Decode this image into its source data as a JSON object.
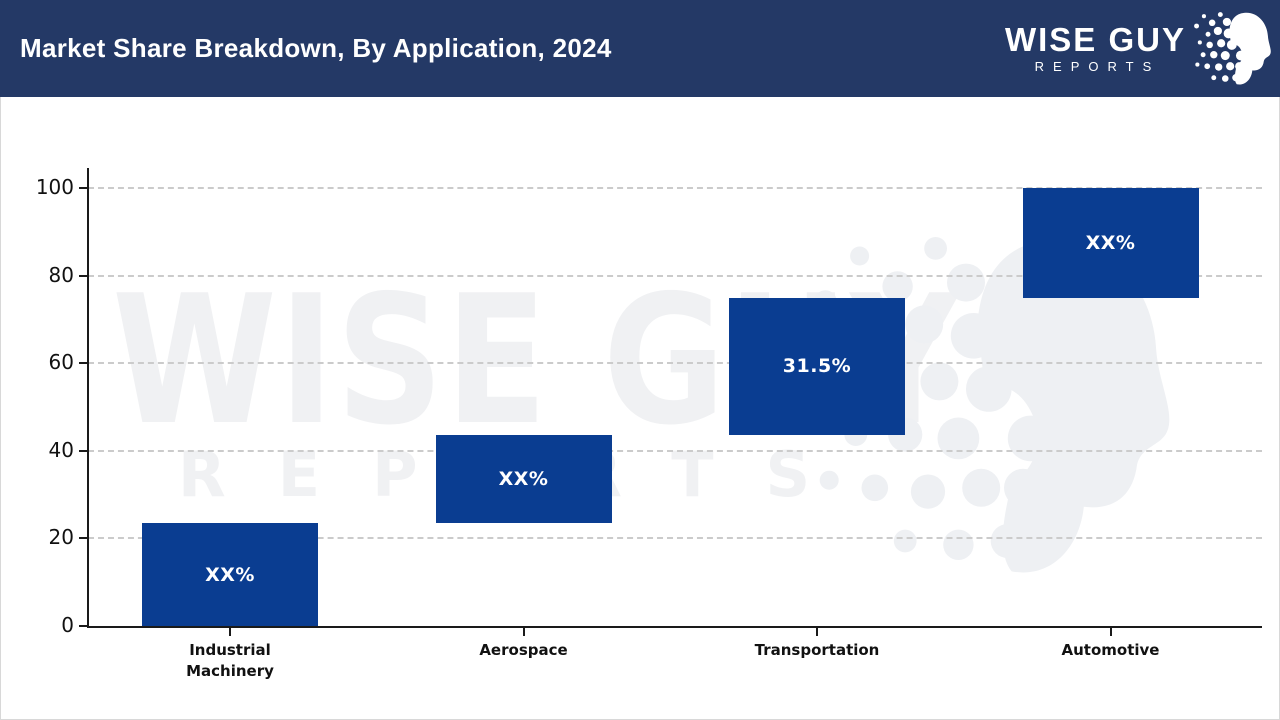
{
  "header": {
    "title": "Market Share Breakdown, By Application, 2024",
    "logo_line1": "WISE GUY",
    "logo_line2": "REPORTS",
    "bg_color": "#243966"
  },
  "watermark": {
    "line1": "WISE GUY",
    "line2": "REPORTS"
  },
  "chart_data": {
    "type": "bar",
    "subtype": "waterfall",
    "title": "Market Share Breakdown, By Application, 2024",
    "categories": [
      "Industrial\nMachinery",
      "Aerospace",
      "Transportation",
      "Automotive"
    ],
    "segments": [
      {
        "category": "Industrial Machinery",
        "start": 0,
        "end": 23.5,
        "label": "XX%"
      },
      {
        "category": "Aerospace",
        "start": 23.5,
        "end": 43.5,
        "label": "XX%"
      },
      {
        "category": "Transportation",
        "start": 43.5,
        "end": 75,
        "label": "31.5%"
      },
      {
        "category": "Automotive",
        "start": 75,
        "end": 100,
        "label": "XX%"
      }
    ],
    "ylim": [
      0,
      100
    ],
    "yticks": [
      0,
      20,
      40,
      60,
      80,
      100
    ],
    "xlabel": "",
    "ylabel": "",
    "grid": "horizontal-dashed",
    "legend": "none",
    "bar_color": "#0a3d91",
    "axis_color": "#1a1a1a",
    "gridline_color": "#cbcbcb"
  }
}
